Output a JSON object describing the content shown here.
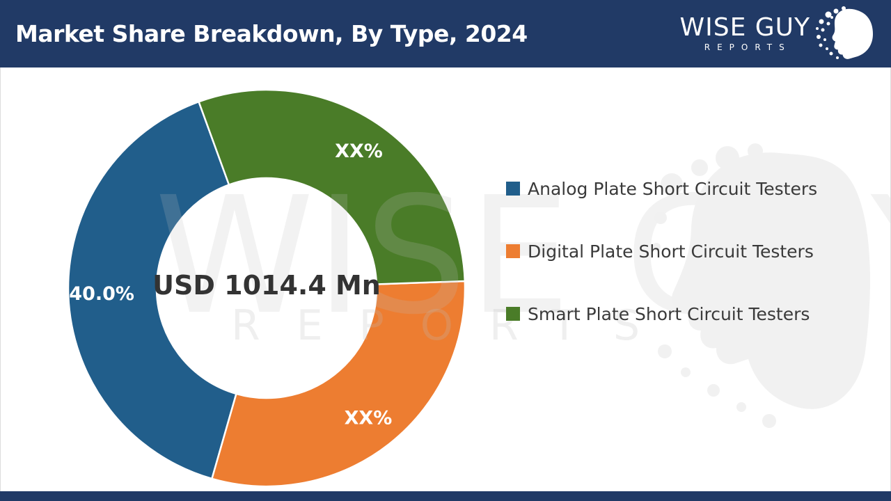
{
  "header": {
    "title": "Market Share Breakdown, By Type, 2024",
    "logo": {
      "line1": "WISE GUY",
      "line2": "REPORTS"
    }
  },
  "colors": {
    "header_bg": "#213a66",
    "footer_bg": "#213a66",
    "center_text": "#333333",
    "legend_text": "#3a3a3a"
  },
  "watermark": {
    "line1": "WISE GUY",
    "line2": "REPORTS"
  },
  "chart_data": {
    "type": "pie",
    "subtype": "donut",
    "title": "Market Share Breakdown, By Type, 2024",
    "center_label": "USD 1014.4 Mn",
    "start_angle": 110,
    "direction": "counterclockwise",
    "legend_position": "right",
    "slices": [
      {
        "name": "Analog Plate Short Circuit Testers",
        "value": 40,
        "label": "40.0%",
        "color": "#215e8b"
      },
      {
        "name": "Digital Plate Short Circuit Testers",
        "value": 30,
        "label": "XX%",
        "color": "#ed7d31"
      },
      {
        "name": "Smart Plate Short Circuit Testers",
        "value": 30,
        "label": "XX%",
        "color": "#4a7c28"
      }
    ]
  }
}
